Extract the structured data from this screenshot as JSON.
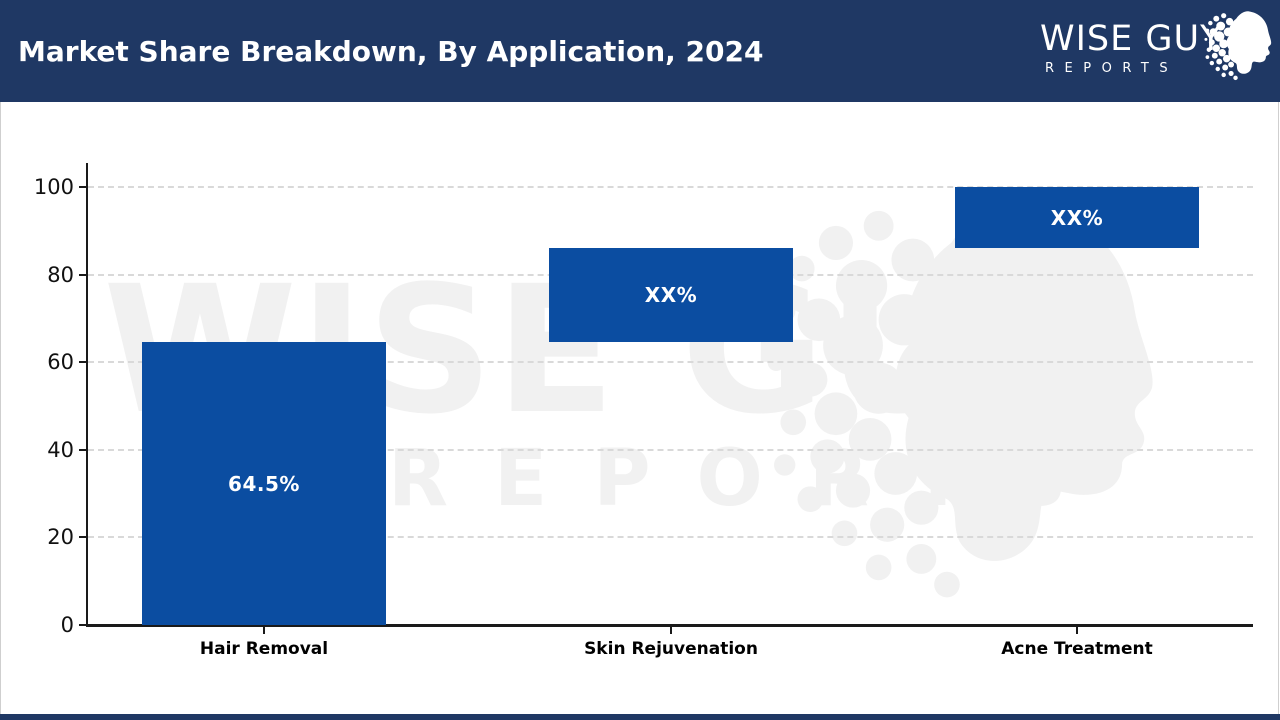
{
  "header": {
    "title": "Market Share Breakdown, By Application, 2024",
    "logo": {
      "line1": "WISE GUY",
      "line2": "REPORTS"
    }
  },
  "watermark": {
    "line1": "WISE GUY",
    "line2": "REPORTS"
  },
  "colors": {
    "header_bg": "#1f3864",
    "bar": "#0b4da1",
    "grid": "#d9d9d9",
    "axis": "#1a1a1a",
    "bar_label": "#ffffff",
    "watermark": "#f1f1f1"
  },
  "chart_data": {
    "type": "bar",
    "subtype": "waterfall-percent-breakdown",
    "title": "Market Share Breakdown, By Application, 2024",
    "categories": [
      "Hair Removal",
      "Skin Rejuvenation",
      "Acne Treatment"
    ],
    "bars": [
      {
        "category": "Hair Removal",
        "start": 0,
        "end": 64.5,
        "label": "64.5%"
      },
      {
        "category": "Skin Rejuvenation",
        "start": 64.5,
        "end": 86,
        "label": "XX%"
      },
      {
        "category": "Acne Treatment",
        "start": 86,
        "end": 100,
        "label": "XX%"
      }
    ],
    "xlabel": "",
    "ylabel": "",
    "ylim": [
      0,
      100
    ],
    "yticks": [
      0,
      20,
      40,
      60,
      80,
      100
    ],
    "grid": "horizontal-dashed",
    "legend": "none"
  }
}
